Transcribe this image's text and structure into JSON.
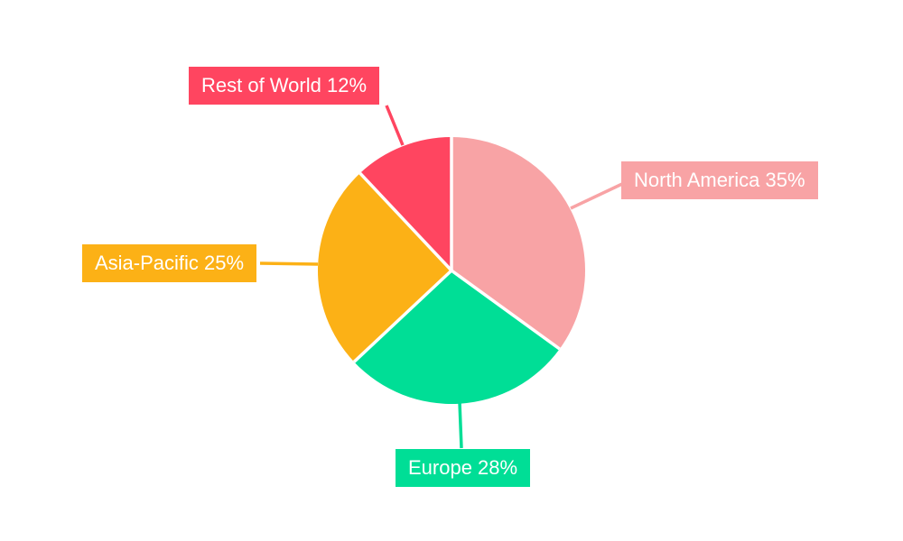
{
  "chart_data": {
    "type": "pie",
    "title": "",
    "labels": [
      "North America",
      "Europe",
      "Asia-Pacific",
      "Rest of World"
    ],
    "values": [
      35,
      28,
      25,
      12
    ],
    "unit": "%",
    "colors": [
      "#F8A3A5",
      "#00DE96",
      "#FCB116",
      "#FF4560"
    ],
    "slice_labels": [
      "North America 35%",
      "Europe 28%",
      "Asia-Pacific 25%",
      "Rest of World 12%"
    ],
    "start_angle_deg": 0,
    "direction": "clockwise",
    "legend": "none",
    "background_color": "#FFFFFF",
    "label_text_color": "#FFFFFF",
    "slice_gap_color": "#FFFFFF"
  }
}
